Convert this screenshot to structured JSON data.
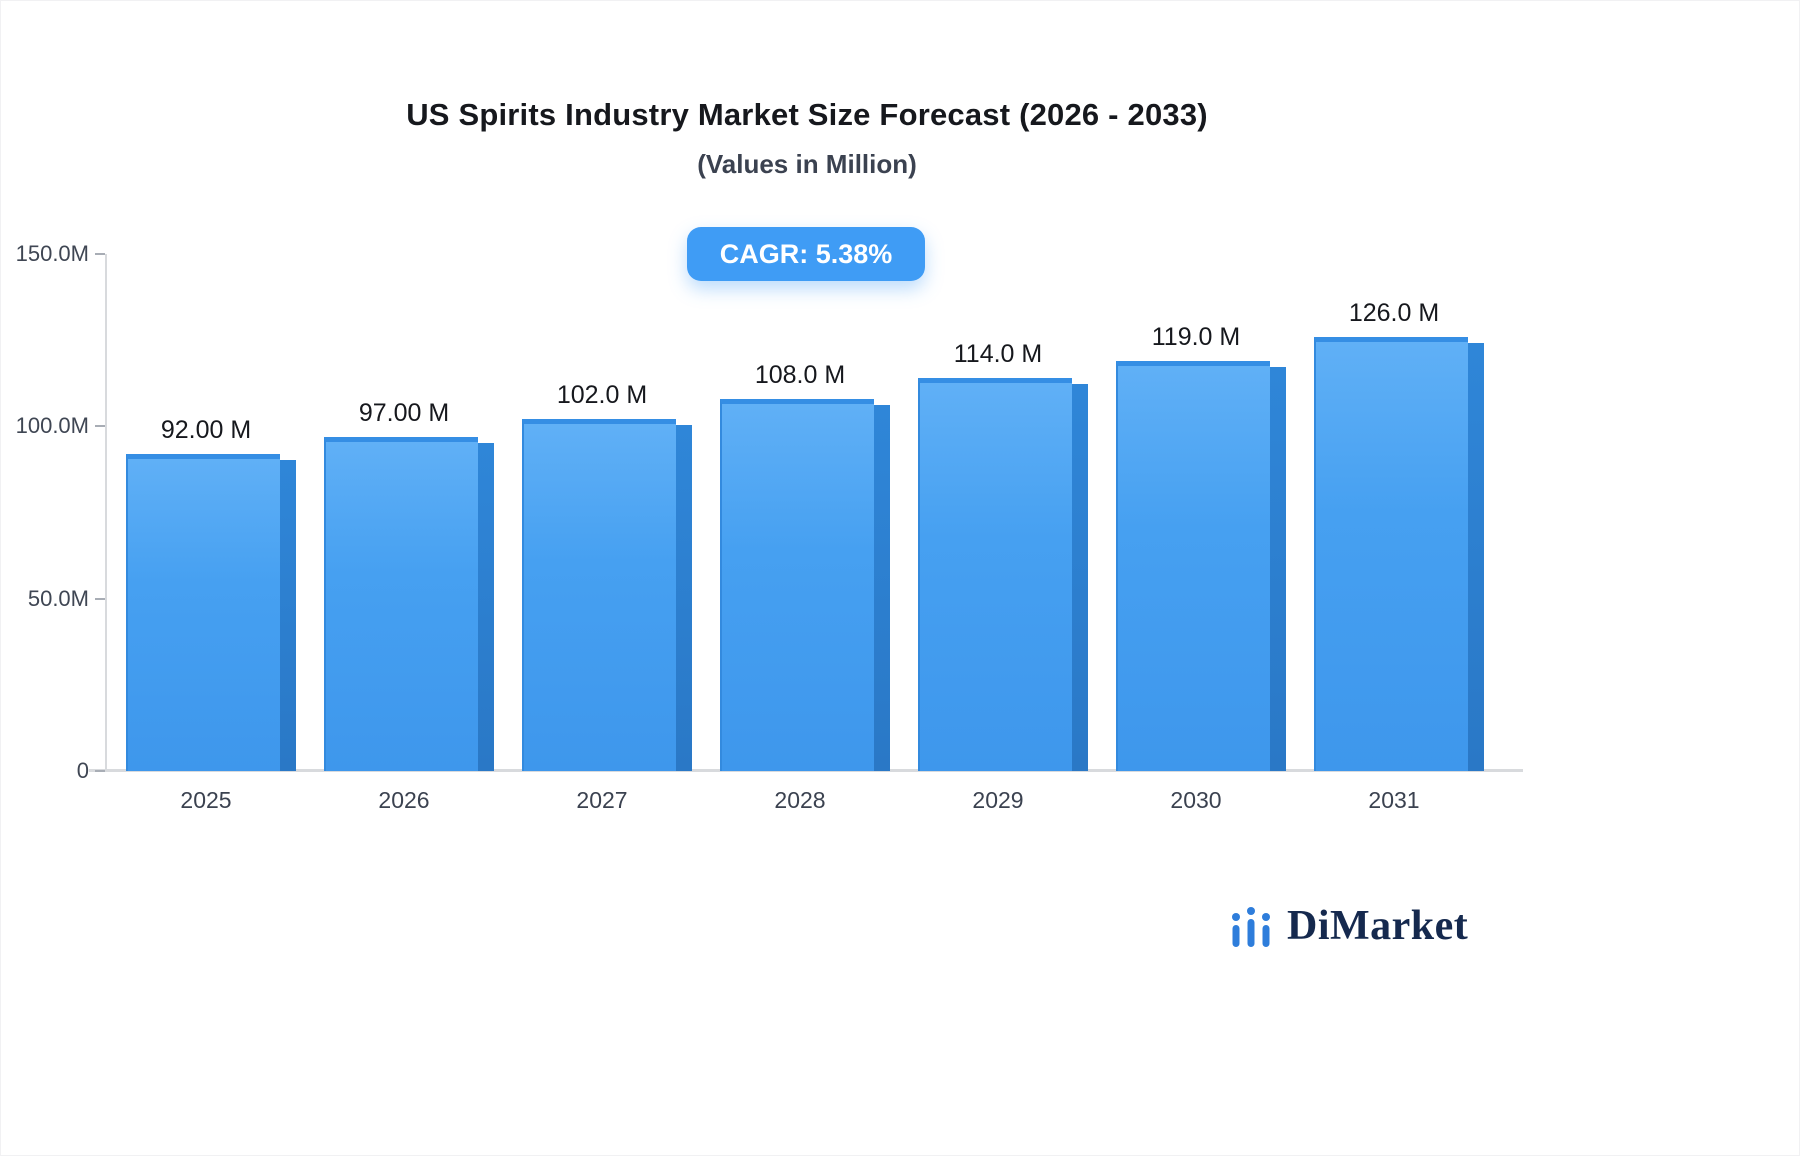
{
  "header": {
    "title": "US Spirits Industry Market Size Forecast (2026 - 2033)",
    "subtitle": "(Values in Million)"
  },
  "badge": {
    "label": "CAGR: 5.38%"
  },
  "logo": {
    "text": "DiMarket"
  },
  "colors": {
    "bar_main": "#42a0f1",
    "bar_side": "#2b7fd0",
    "badge_blue": "#3f9cf5",
    "logo_navy": "#15294e",
    "logo_icon_blue": "#2e7ddb",
    "axis_gray": "#d8dadd"
  },
  "chart_data": {
    "type": "bar",
    "title": "US Spirits Industry Market Size Forecast (2026 - 2033)",
    "subtitle": "(Values in Million)",
    "annotation": "CAGR: 5.38%",
    "categories": [
      "2025",
      "2026",
      "2027",
      "2028",
      "2029",
      "2030",
      "2031"
    ],
    "values": [
      92,
      97,
      102,
      108,
      114,
      119,
      126
    ],
    "value_labels": [
      "92.00 M",
      "97.00 M",
      "102.0 M",
      "108.0 M",
      "114.0 M",
      "119.0 M",
      "126.0 M"
    ],
    "xlabel": "",
    "ylabel": "",
    "ylim": [
      0,
      150
    ],
    "y_ticks": [
      {
        "value": 150,
        "label": "150.0M"
      },
      {
        "value": 100,
        "label": "100.0M"
      },
      {
        "value": 50,
        "label": "50.0M"
      },
      {
        "value": 0,
        "label": "0"
      }
    ],
    "grid": false,
    "legend": false
  }
}
